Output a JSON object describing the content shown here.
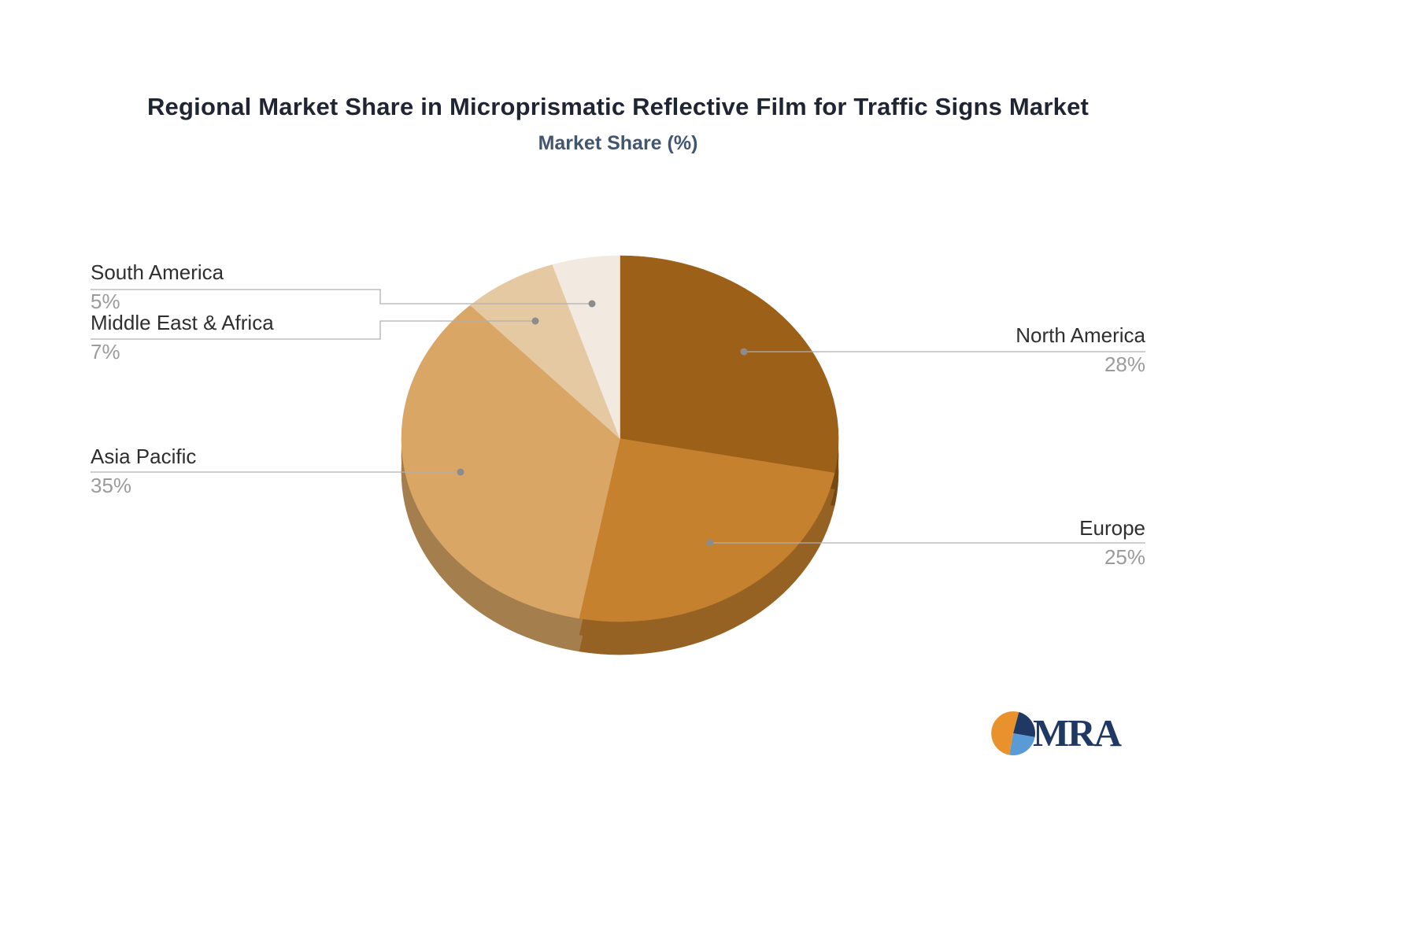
{
  "title": "Regional Market Share in Microprismatic Reflective Film for Traffic Signs Market",
  "subtitle": "Market Share (%)",
  "chart_data": {
    "type": "pie",
    "title": "Regional Market Share in Microprismatic Reflective Film for Traffic Signs Market",
    "subtitle": "Market Share (%)",
    "unit": "%",
    "start_angle_deg": 0,
    "direction": "clockwise",
    "legend_position": "none",
    "style": "3d-pie",
    "slices": [
      {
        "label": "North America",
        "value": 28,
        "display": "28%",
        "color": "#9C6019",
        "label_side": "right"
      },
      {
        "label": "Europe",
        "value": 25,
        "display": "25%",
        "color": "#C5812E",
        "label_side": "right"
      },
      {
        "label": "Asia Pacific",
        "value": 35,
        "display": "35%",
        "color": "#D9A666",
        "label_side": "left"
      },
      {
        "label": "Middle East & Africa",
        "value": 7,
        "display": "7%",
        "color": "#E5C9A2",
        "label_side": "left"
      },
      {
        "label": "South America",
        "value": 5,
        "display": "5%",
        "color": "#F2EAE0",
        "label_side": "left"
      }
    ]
  },
  "logo": {
    "text": "MRA",
    "navy": "#203864",
    "light_blue": "#5B9BD5",
    "orange": "#E8912D"
  }
}
